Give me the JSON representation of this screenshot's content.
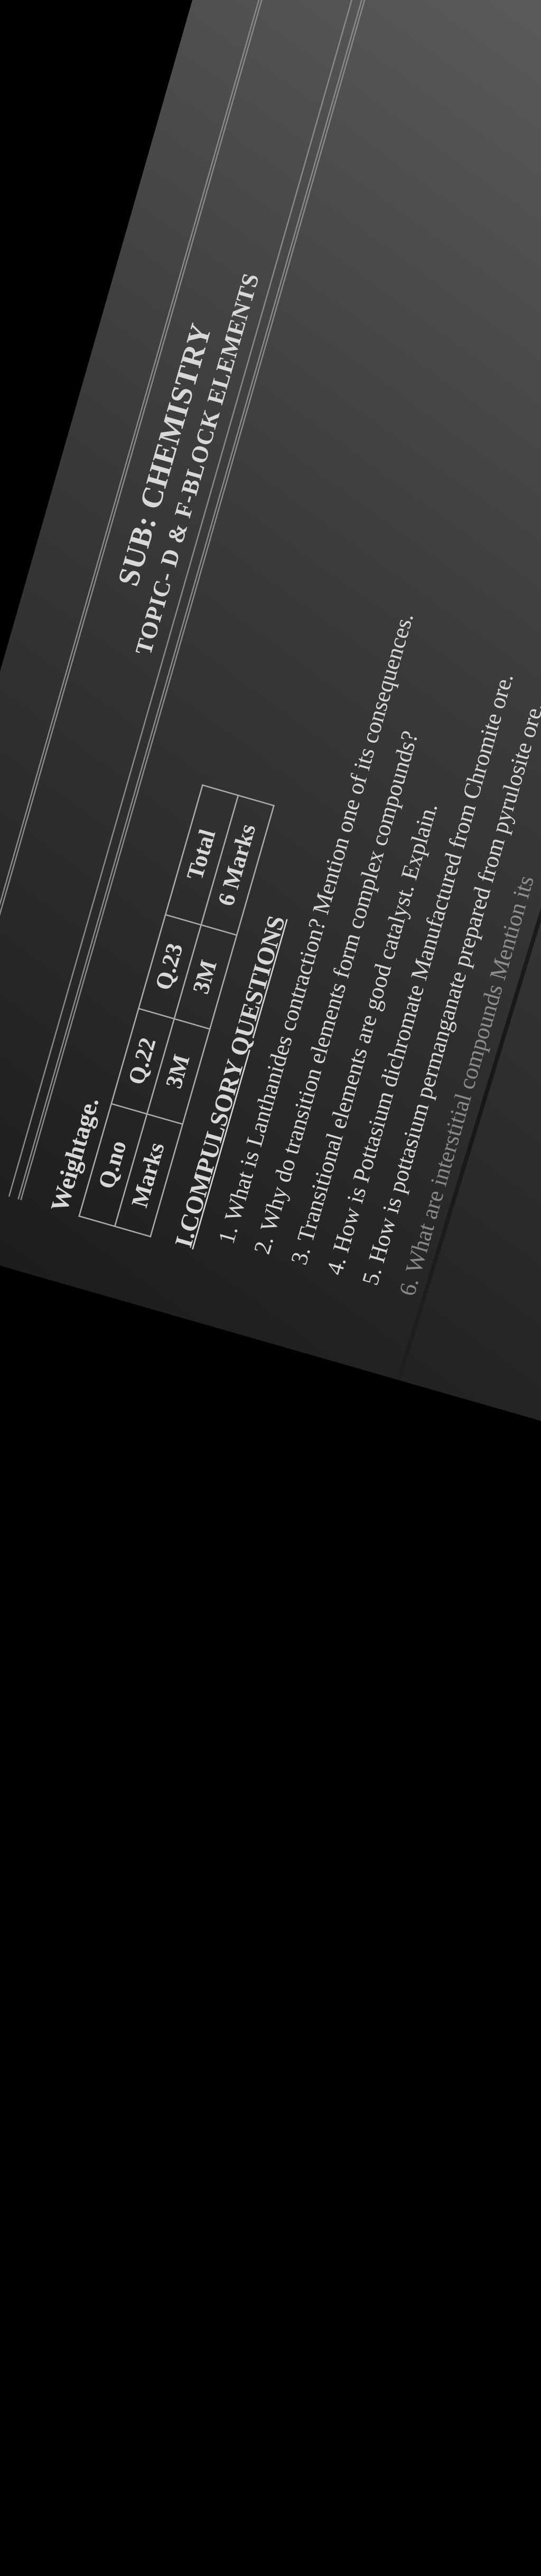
{
  "header": {
    "subject_label": "SUB: CHEMISTRY",
    "topic_label": "TOPIC- D & F-BLOCK ELEMENTS"
  },
  "weightage": {
    "label": "Weightage.",
    "columns": [
      "Q.no",
      "Q.22",
      "Q.23",
      "Total"
    ],
    "rows": [
      [
        "Marks",
        "3M",
        "3M",
        "6 Marks"
      ]
    ]
  },
  "section1": {
    "title": "I.COMPULSORY QUESTIONS",
    "questions": [
      "What is Lanthanides contraction? Mention one of its consequences.",
      "Why do transition elements form complex compounds?",
      "Transitional elements are good catalyst. Explain.",
      "How is Pottasium dichromate Manufactured from Chromite ore.",
      "How is pottasium permanganate prepared from pyrulosite ore.",
      "What are interstitial compounds Mention its"
    ]
  },
  "styling": {
    "page_bg_gradient": [
      "#1a1a1a",
      "#5a5a5a"
    ],
    "text_color": "#d8d8d8",
    "border_color": "#aaaaaa",
    "body_font": "Georgia, Times New Roman, serif",
    "header_fontsize_pt": 22,
    "topic_fontsize_pt": 17,
    "body_fontsize_pt": 17,
    "rotation_deg": -74
  }
}
